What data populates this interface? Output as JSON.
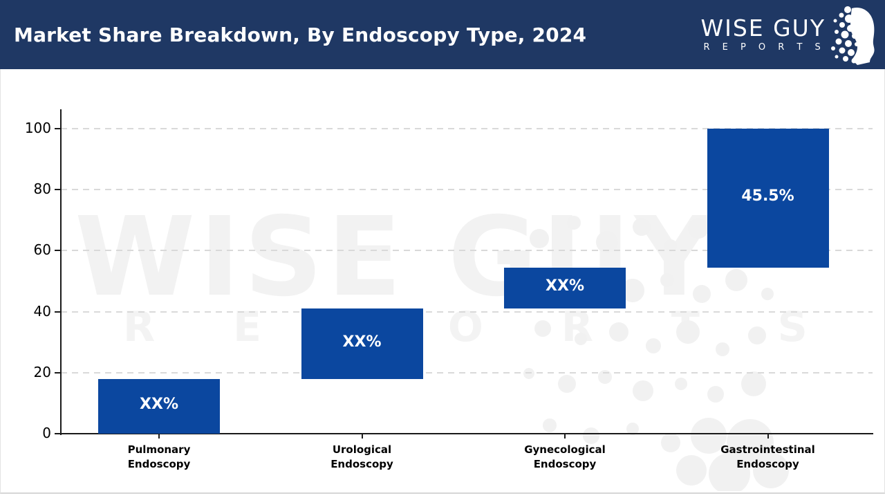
{
  "header": {
    "title": "Market Share Breakdown, By Endoscopy Type, 2024",
    "logo_line1": "WISE GUY",
    "logo_line2": "R E P O R T S"
  },
  "watermark": {
    "line1": "WISE GUY",
    "line2": "R E P O R T S"
  },
  "colors": {
    "header_bg": "#1f3864",
    "bar": "#0b479f",
    "gridline": "#d9d9d9",
    "axis": "#1a1a1a",
    "value_label": "#ffffff"
  },
  "chart_data": {
    "type": "bar",
    "subtype": "floating-waterfall",
    "title": "Market Share Breakdown, By Endoscopy Type, 2024",
    "xlabel": "",
    "ylabel": "",
    "ylim": [
      0,
      100
    ],
    "yticks": [
      0,
      20,
      40,
      60,
      80,
      100
    ],
    "grid": "horizontal-dashed",
    "legend": "none",
    "categories": [
      "Pulmonary Endoscopy",
      "Urological Endoscopy",
      "Gynecological Endoscopy",
      "Gastrointestinal Endoscopy"
    ],
    "bars": [
      {
        "label_line1": "Pulmonary",
        "label_line2": "Endoscopy",
        "start": 0,
        "end": 18,
        "value": 18,
        "value_label": "XX%"
      },
      {
        "label_line1": "Urological",
        "label_line2": "Endoscopy",
        "start": 18,
        "end": 41,
        "value": 23,
        "value_label": "XX%"
      },
      {
        "label_line1": "Gynecological",
        "label_line2": "Endoscopy",
        "start": 41,
        "end": 54.5,
        "value": 13.5,
        "value_label": "XX%"
      },
      {
        "label_line1": "Gastrointestinal",
        "label_line2": "Endoscopy",
        "start": 54.5,
        "end": 100,
        "value": 45.5,
        "value_label": "45.5%"
      }
    ]
  }
}
